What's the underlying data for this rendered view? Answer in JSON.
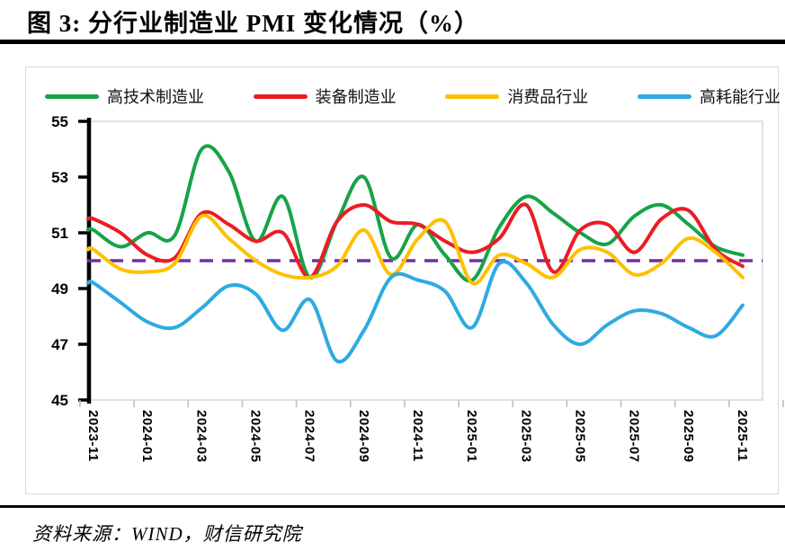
{
  "title": "图 3:  分行业制造业 PMI 变化情况（%）",
  "source": "资料来源：WIND，财信研究院",
  "chart_data": {
    "type": "line",
    "title": "分行业制造业 PMI 变化情况（%）",
    "x": [
      "2023-11",
      "2023-12",
      "2024-01",
      "2024-02",
      "2024-03",
      "2024-04",
      "2024-05",
      "2024-06",
      "2024-07",
      "2024-08",
      "2024-09",
      "2024-10",
      "2024-11",
      "2024-12",
      "2025-01",
      "2025-02",
      "2025-03",
      "2025-04",
      "2025-05",
      "2025-06",
      "2025-07",
      "2025-08",
      "2025-09",
      "2025-10",
      "2025-11"
    ],
    "x_tick_labels": [
      "2023-11",
      "2024-01",
      "2024-03",
      "2024-05",
      "2024-07",
      "2024-09",
      "2024-11",
      "2025-01",
      "2025-03",
      "2025-05",
      "2025-07",
      "2025-09",
      "2025-11"
    ],
    "y_ticks": [
      45,
      47,
      49,
      51,
      53,
      55
    ],
    "ylim": [
      45,
      55
    ],
    "grid": false,
    "legend_position": "top",
    "line_style": "smooth",
    "reference_line": {
      "value": 50,
      "style": "dashed",
      "color": "#7030A0"
    },
    "series": [
      {
        "name": "高技术制造业",
        "color": "#17A348",
        "values": [
          51.1,
          50.5,
          51.0,
          50.9,
          54.0,
          53.2,
          50.7,
          52.3,
          49.4,
          51.4,
          53.0,
          50.1,
          51.3,
          50.2,
          49.3,
          51.2,
          52.3,
          51.7,
          51.0,
          50.6,
          51.6,
          52.0,
          51.3,
          50.5,
          50.2
        ]
      },
      {
        "name": "装备制造业",
        "color": "#EC1C24",
        "values": [
          51.5,
          51.0,
          50.2,
          50.1,
          51.7,
          51.3,
          50.7,
          51.0,
          49.4,
          51.4,
          52.0,
          51.4,
          51.3,
          50.7,
          50.3,
          50.8,
          52.0,
          49.6,
          51.1,
          51.3,
          50.3,
          51.5,
          51.8,
          50.4,
          49.8
        ]
      },
      {
        "name": "消费品行业",
        "color": "#FFC000",
        "values": [
          50.4,
          49.7,
          49.6,
          49.9,
          51.6,
          50.8,
          50.0,
          49.5,
          49.4,
          49.8,
          51.1,
          49.5,
          50.8,
          51.4,
          49.2,
          50.2,
          49.9,
          49.4,
          50.4,
          50.3,
          49.5,
          49.9,
          50.8,
          50.3,
          49.4
        ]
      },
      {
        "name": "高耗能行业",
        "color": "#2FAAE1",
        "values": [
          49.2,
          48.5,
          47.8,
          47.6,
          48.3,
          49.1,
          48.8,
          47.5,
          48.6,
          46.4,
          47.5,
          49.4,
          49.3,
          48.9,
          47.6,
          49.9,
          49.2,
          47.7,
          47.0,
          47.7,
          48.2,
          48.1,
          47.6,
          47.3,
          48.4
        ]
      }
    ],
    "colors": {
      "axis": "#000000",
      "plot_border": "#d9d9d9",
      "x_tick": "#bfbfbf",
      "reference": "#7030A0"
    }
  }
}
